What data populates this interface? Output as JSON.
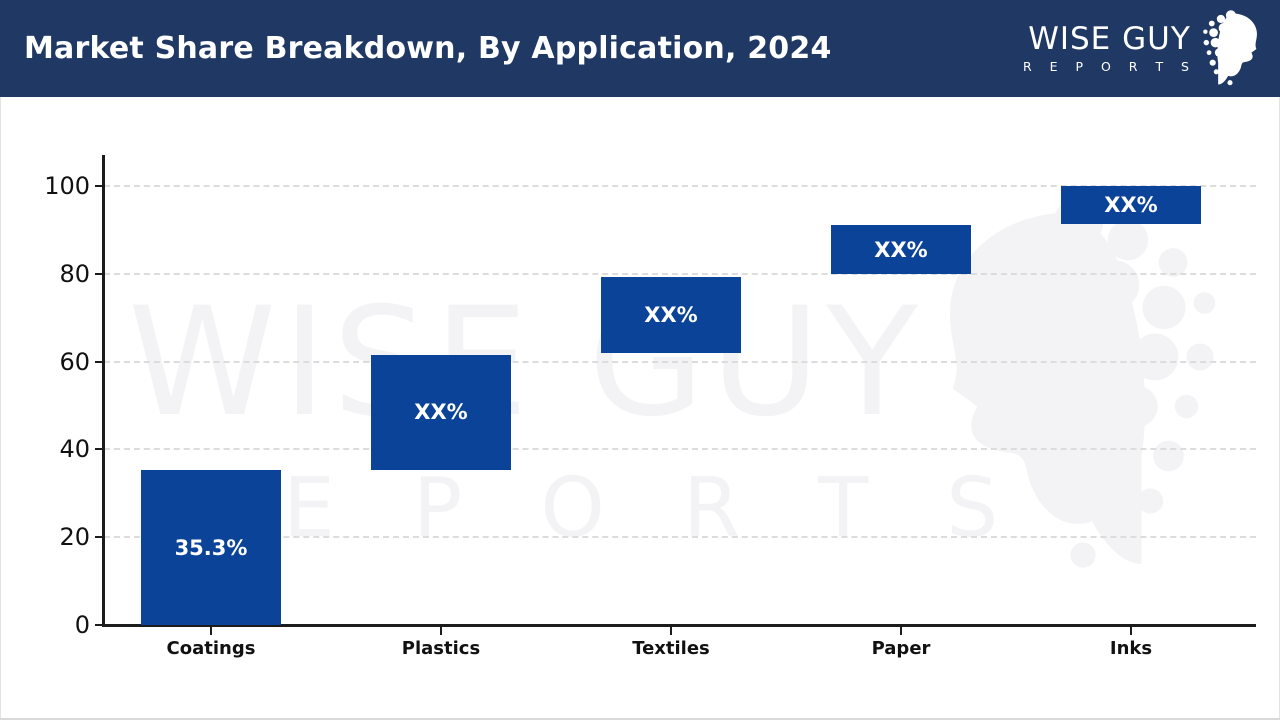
{
  "header": {
    "title": "Market Share Breakdown, By Application, 2024",
    "logo": {
      "line1": "WISE GUY",
      "line2": "R E P O R T S"
    }
  },
  "watermark": {
    "line1": "WISE GUY",
    "line2": "R E P O R T S"
  },
  "colors": {
    "header_bg": "#1f3864",
    "bar": "#0b4399",
    "bar_label": "#ffffff",
    "grid": "#dcdcdc",
    "axis": "#1c1c1c",
    "watermark": "#f3f3f5"
  },
  "chart_data": {
    "type": "bar",
    "subtype": "waterfall",
    "title": "Market Share Breakdown, By Application, 2024",
    "categories": [
      "Coatings",
      "Plastics",
      "Textiles",
      "Paper",
      "Inks"
    ],
    "bars": [
      {
        "category": "Coatings",
        "start": 0,
        "end": 35.3,
        "label": "35.3%"
      },
      {
        "category": "Plastics",
        "start": 35.3,
        "end": 61.6,
        "label": "XX%"
      },
      {
        "category": "Textiles",
        "start": 62.0,
        "end": 79.3,
        "label": "XX%"
      },
      {
        "category": "Paper",
        "start": 79.9,
        "end": 91.1,
        "label": "XX%"
      },
      {
        "category": "Inks",
        "start": 91.4,
        "end": 100,
        "label": "XX%"
      }
    ],
    "yticks": [
      0,
      20,
      40,
      60,
      80,
      100
    ],
    "ylim": [
      0,
      107
    ],
    "xlabel": "",
    "ylabel": "",
    "grid": "horizontal-dashed",
    "legend": false
  }
}
